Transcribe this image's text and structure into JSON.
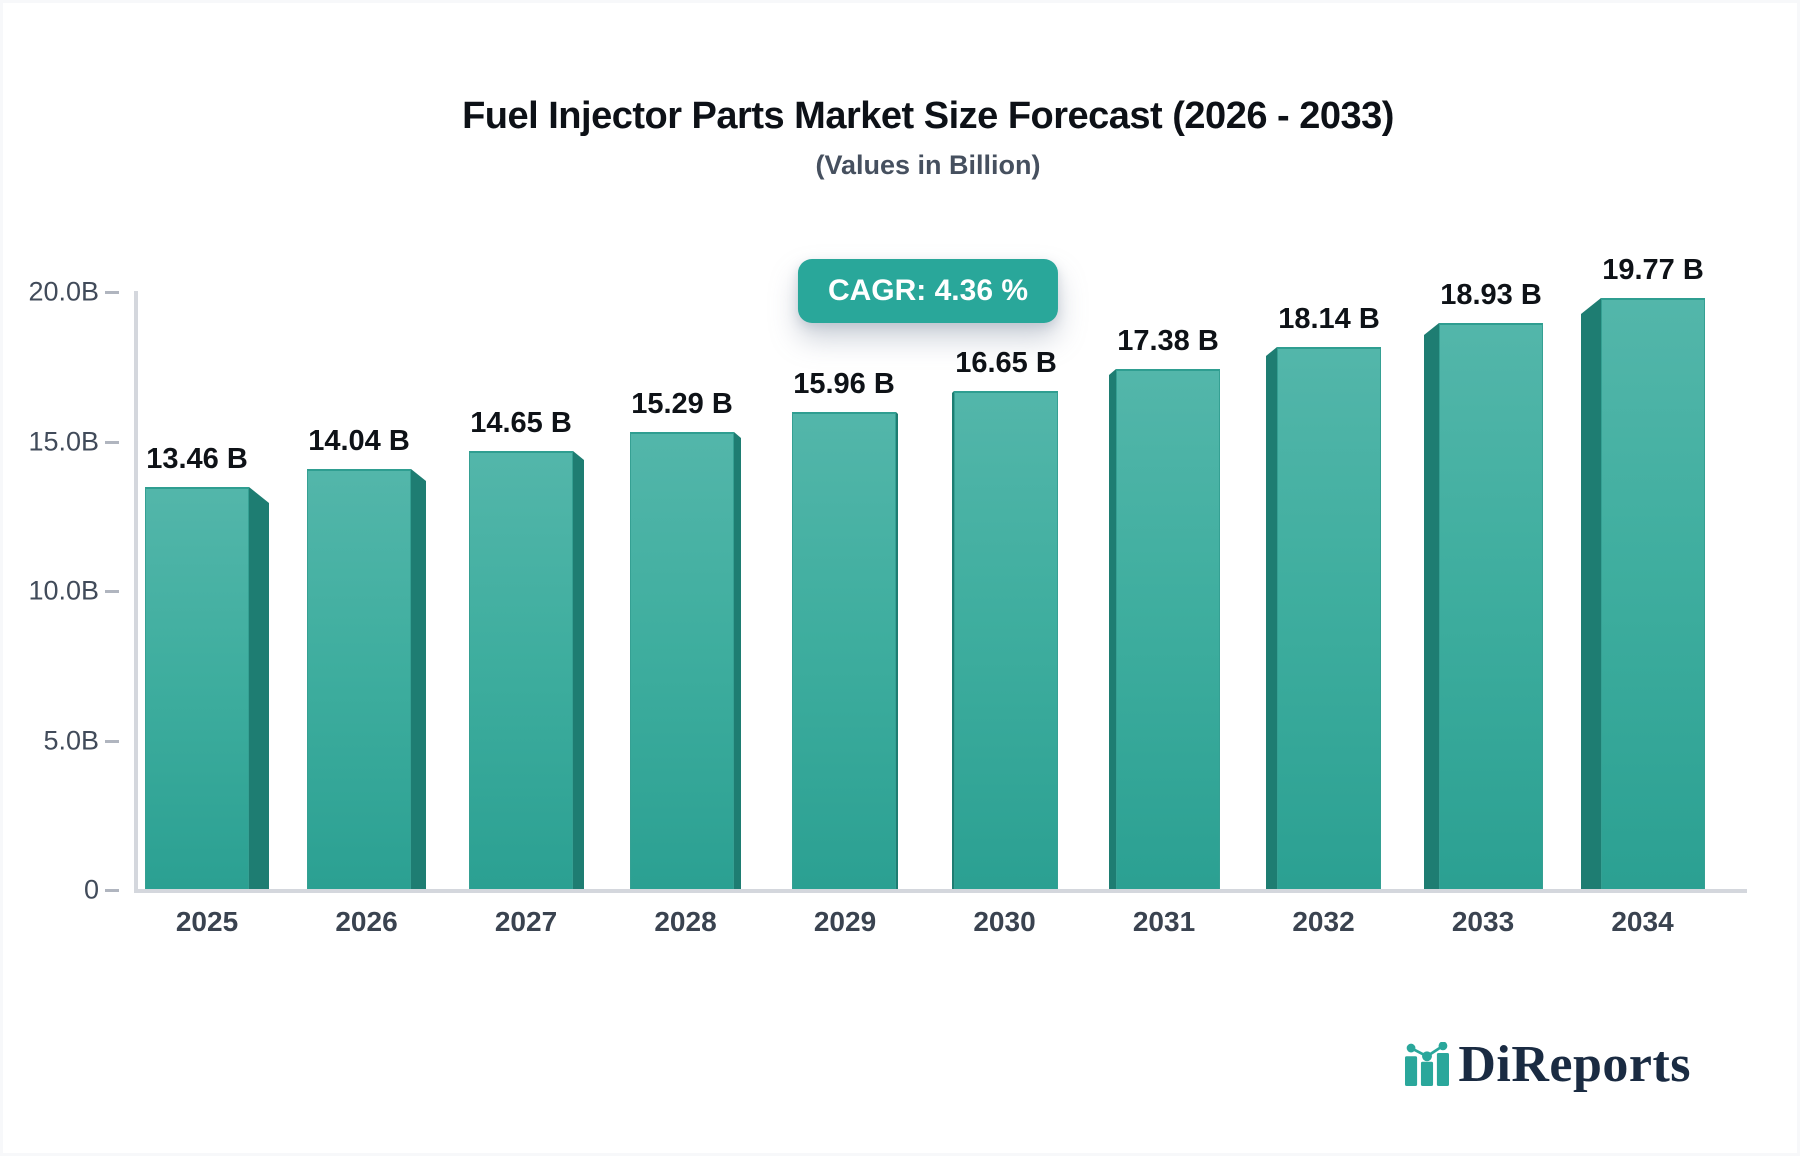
{
  "header": {
    "title": "Fuel Injector Parts Market Size Forecast (2026 - 2033)",
    "subtitle": "(Values in Billion)"
  },
  "badge": {
    "label": "CAGR: 4.36 %"
  },
  "chart_data": {
    "type": "bar",
    "title": "Fuel Injector Parts Market Size Forecast (2026 - 2033)",
    "subtitle": "(Values in Billion)",
    "unit": "Billion",
    "categories": [
      "2025",
      "2026",
      "2027",
      "2028",
      "2029",
      "2030",
      "2031",
      "2032",
      "2033",
      "2034"
    ],
    "values": [
      13.46,
      14.04,
      14.65,
      15.29,
      15.96,
      16.65,
      17.38,
      18.14,
      18.93,
      19.77
    ],
    "value_labels": [
      "13.46 B",
      "14.04 B",
      "14.65 B",
      "15.29 B",
      "15.96 B",
      "16.65 B",
      "17.38 B",
      "18.14 B",
      "18.93 B",
      "19.77 B"
    ],
    "cagr_percent": 4.36,
    "ylim": [
      0,
      20
    ],
    "yticks": [
      {
        "value": 20,
        "label": "20.0B"
      },
      {
        "value": 15,
        "label": "15.0B"
      },
      {
        "value": 10,
        "label": "10.0B"
      },
      {
        "value": 5,
        "label": "5.0B"
      },
      {
        "value": 0,
        "label": "0"
      }
    ],
    "grid": false,
    "legend": false,
    "bar_style": "3d-perspective"
  },
  "logo": {
    "text": "DiReports"
  },
  "colors": {
    "bar_face_top": "#53b6aa",
    "bar_face_bottom": "#2ba092",
    "bar_side_dark": "#1e7d72",
    "badge_bg": "#29a79a",
    "badge_text": "#ffffff",
    "axis": "#d4d7dd",
    "tick_text": "#414b5a",
    "year_text": "#3a4350",
    "value_text": "#0e1217",
    "title_text": "#0d1117",
    "subtitle_text": "#46505f",
    "logo_navy": "#1a2b42",
    "logo_teal": "#2aa79b"
  }
}
